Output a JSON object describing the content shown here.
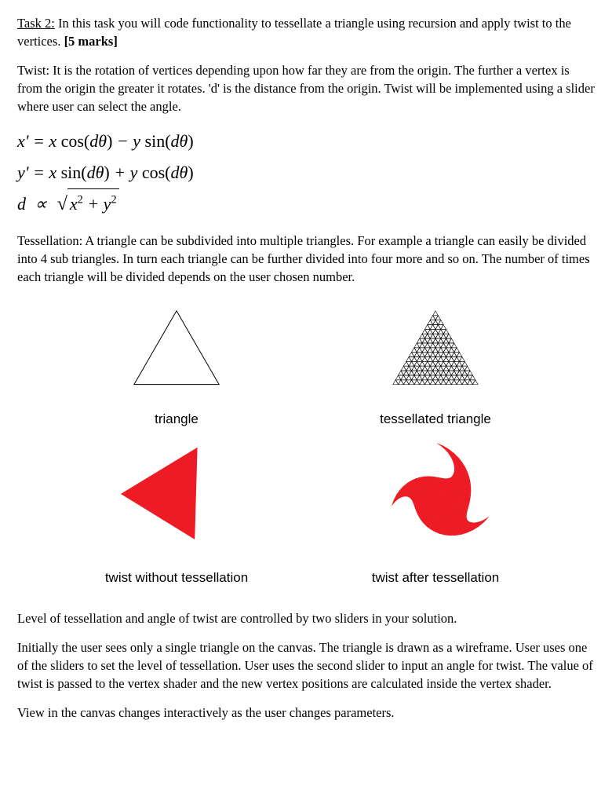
{
  "task": {
    "label": "Task 2:",
    "intro": " In this task you will code functionality to tessellate a triangle using recursion and apply twist to the vertices. ",
    "marks": "[5 marks]"
  },
  "twist_para": "Twist: It is the rotation of vertices depending upon how far they are from the origin. The further a vertex is from the origin the greater it rotates. 'd' is the distance from the origin. Twist will be implemented using a slider where user can select the angle.",
  "equations": {
    "line1_html": "x' = x cos(dθ) − y sin(dθ)",
    "line2_html": "y' = x sin(dθ) + y cos(dθ)",
    "line3_prefix": "d ∝ ",
    "line3_sqrt_body": "x² + y²"
  },
  "tess_para": "Tessellation: A triangle can be subdivided into multiple triangles. For example a triangle can easily be divided into 4 sub triangles. In turn each triangle can be further divided into four more and so on. The number of times each triangle will be divided depends on the user chosen number.",
  "figures": {
    "tri_label": "triangle",
    "tess_label": "tessellated triangle",
    "twist_no_label": "twist without tessellation",
    "twist_after_label": "twist after tessellation",
    "outline_color": "#000000",
    "outline_width": 1,
    "fill_color": "#ed1b24",
    "tess_depth": 4,
    "twist_angle_deg": 100
  },
  "para_sliders": "Level of tessellation and angle of twist are controlled by two sliders in your solution.",
  "para_initial": "Initially the user sees only a single triangle on the canvas. The triangle is drawn as a wireframe. User uses one of the sliders to set the level of tessellation. User uses the second slider to input an angle for twist. The value of twist is passed to the vertex shader and the new vertex positions are calculated inside the vertex shader.",
  "para_view": "View in the canvas changes interactively as the user changes parameters."
}
